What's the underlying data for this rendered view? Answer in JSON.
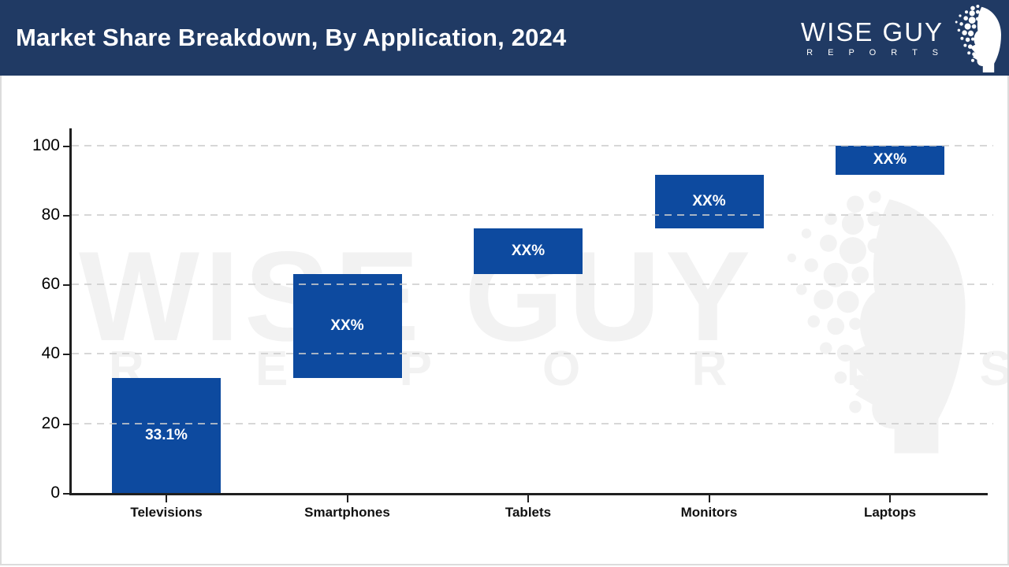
{
  "header": {
    "title": "Market Share Breakdown, By Application, 2024",
    "brand": {
      "name": "WISE GUY",
      "tagline": "R E P O R T S"
    }
  },
  "watermark": {
    "line1": "WISE GUY",
    "line2": "R E P O R T S"
  },
  "colors": {
    "header_bg": "#203a64",
    "bar": "#0d4a9f",
    "bar_label": "#ffffff",
    "axis": "#1f1f1f",
    "grid": "#d9d9d9",
    "watermark": "#f2f2f2",
    "title_text": "#ffffff"
  },
  "chart_data": {
    "type": "bar",
    "variant": "waterfall",
    "title": "Market Share Breakdown, By Application, 2024",
    "categories": [
      "Televisions",
      "Smartphones",
      "Tablets",
      "Monitors",
      "Laptops"
    ],
    "segments": [
      {
        "category": "Televisions",
        "start": 0,
        "end": 33.1,
        "value": 33.1,
        "label": "33.1%"
      },
      {
        "category": "Smartphones",
        "start": 33.1,
        "end": 63.0,
        "value": 29.9,
        "label": "XX%"
      },
      {
        "category": "Tablets",
        "start": 63.0,
        "end": 76.0,
        "value": 13.0,
        "label": "XX%"
      },
      {
        "category": "Monitors",
        "start": 76.0,
        "end": 91.6,
        "value": 15.6,
        "label": "XX%"
      },
      {
        "category": "Laptops",
        "start": 91.6,
        "end": 100.0,
        "value": 8.4,
        "label": "XX%"
      }
    ],
    "yticks": [
      0,
      20,
      40,
      60,
      80,
      100
    ],
    "ylim": [
      0,
      105
    ],
    "grid": true,
    "legend_position": "none"
  },
  "icons": {
    "brand_face": "dotted-head-profile",
    "watermark_face": "dotted-head-profile"
  }
}
